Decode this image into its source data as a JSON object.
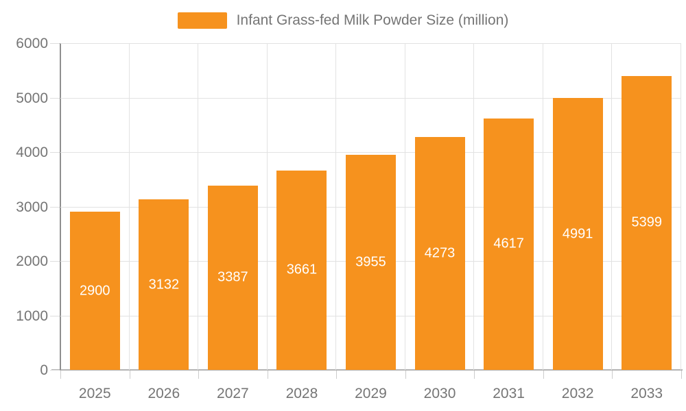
{
  "legend": {
    "label": "Infant Grass-fed Milk Powder Size (million)"
  },
  "chart_data": {
    "type": "bar",
    "title": "",
    "series_name": "Infant Grass-fed Milk Powder Size (million)",
    "categories": [
      "2025",
      "2026",
      "2027",
      "2028",
      "2029",
      "2030",
      "2031",
      "2032",
      "2033"
    ],
    "values": [
      2900,
      3132,
      3387,
      3661,
      3955,
      4273,
      4617,
      4991,
      5399
    ],
    "xlabel": "",
    "ylabel": "",
    "ylim": [
      0,
      6000
    ],
    "y_ticks": [
      0,
      1000,
      2000,
      3000,
      4000,
      5000,
      6000
    ],
    "grid": true,
    "legend_position": "top-center",
    "bar_color": "#f6921e",
    "value_label_color": "#ffffff",
    "axis_label_color": "#757575"
  }
}
